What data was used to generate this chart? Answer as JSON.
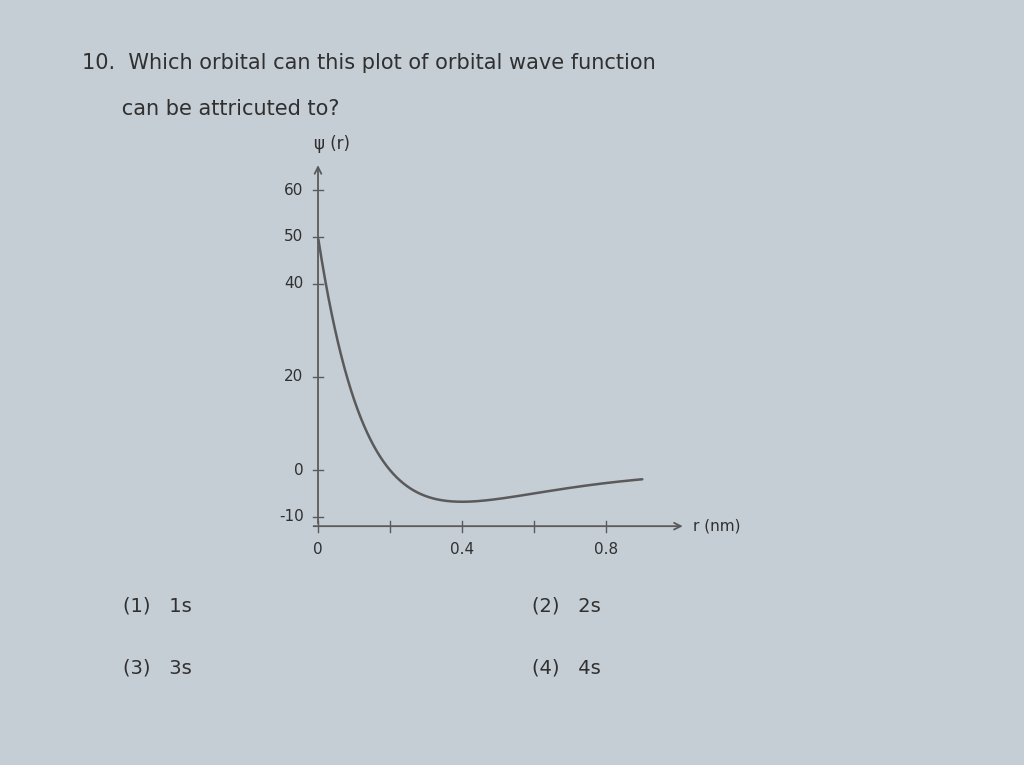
{
  "title_line1": "10.  Which orbital can this plot of orbital wave function",
  "title_line2": "      can be attricuted to?",
  "xlabel": "r (nm)",
  "ylabel": "ψ (r)",
  "xlim": [
    -0.03,
    1.05
  ],
  "ylim": [
    -14,
    68
  ],
  "yticks": [
    -10,
    0,
    20,
    40,
    50,
    60
  ],
  "xticks": [
    0,
    0.4,
    0.8
  ],
  "options": [
    "(1)   1s",
    "(2)   2s",
    "(3)   3s",
    "(4)   4s"
  ],
  "background_color": "#c5cdd5",
  "line_color": "#5a5a5a",
  "text_color": "#303030",
  "a0": 0.065,
  "scale": 25,
  "peak_r": 0.001,
  "peak_psi": 50
}
